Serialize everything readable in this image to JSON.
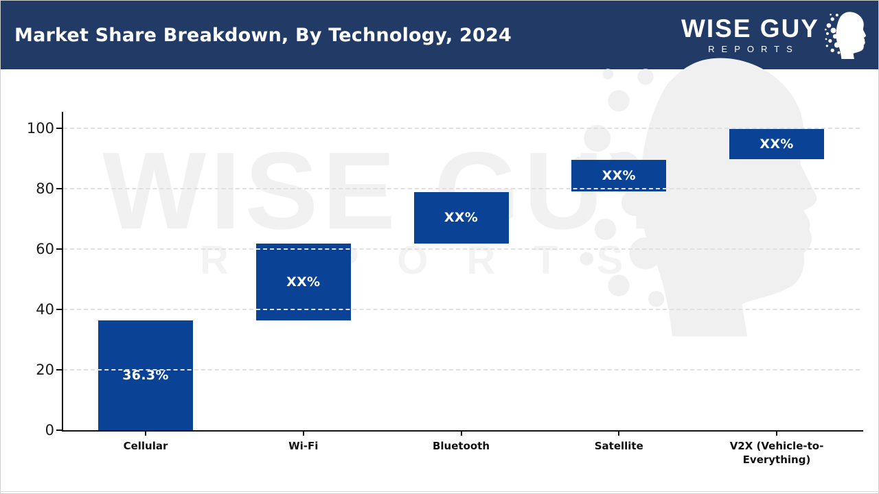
{
  "header": {
    "title": "Market Share Breakdown, By Technology, 2024",
    "logo": {
      "line1": "WISE GUY",
      "line2": "REPORTS"
    }
  },
  "watermark": {
    "line1": "WISE GUY",
    "line2": "REPORTS"
  },
  "chart_data": {
    "type": "bar",
    "subtype": "waterfall",
    "title": "Market Share Breakdown, By Technology, 2024",
    "categories": [
      "Cellular",
      "Wi-Fi",
      "Bluetooth",
      "Satellite",
      "V2X (Vehicle-to-Everything)"
    ],
    "bars": [
      {
        "category": "Cellular",
        "value_label": "36.3%",
        "start": 0,
        "end": 36.3
      },
      {
        "category": "Wi-Fi",
        "value_label": "XX%",
        "start": 36.3,
        "end": 61.8
      },
      {
        "category": "Bluetooth",
        "value_label": "XX%",
        "start": 61.8,
        "end": 78.9
      },
      {
        "category": "Satellite",
        "value_label": "XX%",
        "start": 79.0,
        "end": 89.6
      },
      {
        "category": "V2X (Vehicle-to-Everything)",
        "value_label": "XX%",
        "start": 89.8,
        "end": 99.8
      }
    ],
    "yticks": [
      0,
      20,
      40,
      60,
      80,
      100
    ],
    "ylim": [
      0,
      105
    ],
    "grid": "horizontal-dashed",
    "legend": "none",
    "bar_color": "#0a4296",
    "value_label_color": "#ffffff",
    "axis_color": "#111111",
    "header_color": "#213a66"
  }
}
